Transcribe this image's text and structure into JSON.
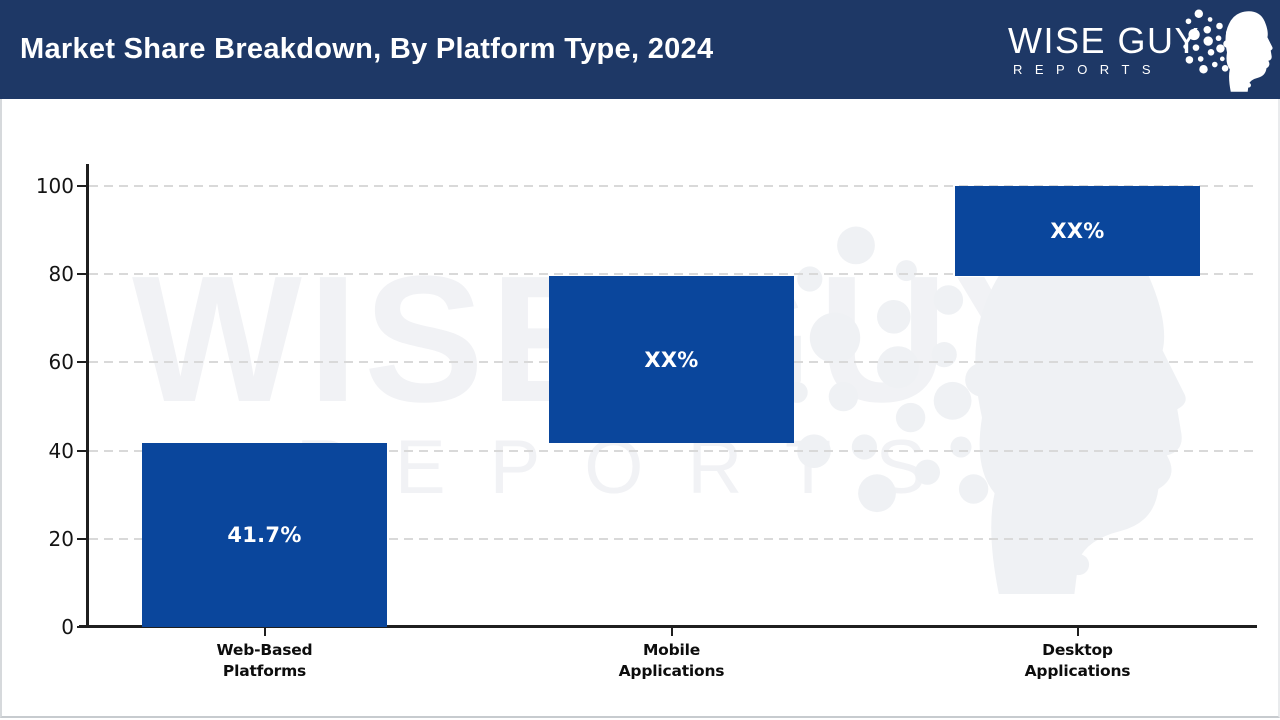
{
  "header": {
    "title": "Market Share Breakdown, By Platform Type, 2024",
    "logo": {
      "line1": "WISE GUY",
      "line2": "REPORTS"
    }
  },
  "watermark": {
    "line1": "WISE GUY",
    "line2": "REPORTS"
  },
  "chart_data": {
    "type": "bar",
    "variant": "waterfall",
    "title": "Market Share Breakdown, By Platform Type, 2024",
    "categories": [
      "Web-Based Platforms",
      "Mobile Applications",
      "Desktop Applications"
    ],
    "category_label_lines": [
      [
        "Web-Based",
        "Platforms"
      ],
      [
        "Mobile",
        "Applications"
      ],
      [
        "Desktop",
        "Applications"
      ]
    ],
    "series": [
      {
        "name": "Market share (%)",
        "segments": [
          {
            "category": "Web-Based Platforms",
            "start": 0,
            "end": 41.7,
            "label": "41.7%"
          },
          {
            "category": "Mobile Applications",
            "start": 41.7,
            "end": 79.5,
            "label": "XX%"
          },
          {
            "category": "Desktop Applications",
            "start": 79.5,
            "end": 100,
            "label": "XX%"
          }
        ]
      }
    ],
    "xlabel": "",
    "ylabel": "",
    "ylim": [
      0,
      100
    ],
    "yticks": [
      0,
      20,
      40,
      60,
      80,
      100
    ],
    "grid": {
      "horizontal": true,
      "style": "dashed"
    },
    "legend": "none",
    "bar_color": "#0a469c",
    "value_label_color": "#ffffff"
  },
  "colors": {
    "header_bg": "#1e3866",
    "bar": "#0a469c",
    "bar_label": "#ffffff",
    "gridline": "#d9d9d9",
    "axis": "#1f1f1f",
    "watermark": "#f1f2f5"
  }
}
